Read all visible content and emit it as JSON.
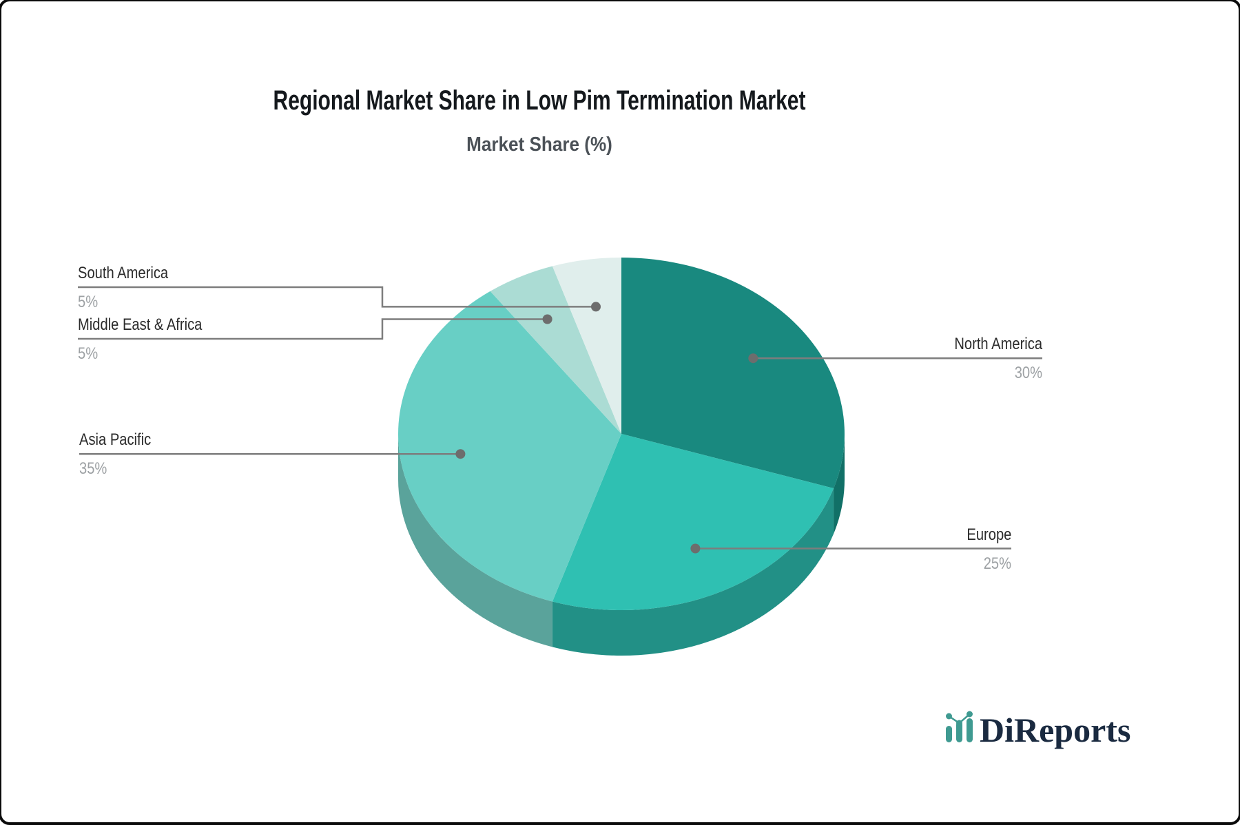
{
  "title": "Regional Market Share in Low Pim Termination Market",
  "subtitle": "Market Share (%)",
  "chart_data": {
    "type": "pie",
    "title": "Regional Market Share in Low Pim Termination Market",
    "subtitle": "Market Share (%)",
    "unit": "%",
    "style": "3d-extruded-pie",
    "direction": "clockwise",
    "start_angle_deg": 0,
    "legend": "none, callout labels with leader lines",
    "series": [
      {
        "name": "North America",
        "value": 30,
        "label": "30%",
        "color": "#19897f",
        "side_color": "#117067"
      },
      {
        "name": "Europe",
        "value": 25,
        "label": "25%",
        "color": "#2fc0b2",
        "side_color": "#229086"
      },
      {
        "name": "Asia Pacific",
        "value": 35,
        "label": "35%",
        "color": "#68cfc5",
        "side_color": "#5aa39b"
      },
      {
        "name": "Middle East & Africa",
        "value": 5,
        "label": "5%",
        "color": "#abdcd4",
        "side_color": "#8fbeb8"
      },
      {
        "name": "South America",
        "value": 5,
        "label": "5%",
        "color": "#e0eeec",
        "side_color": "#bdd4d0"
      }
    ]
  },
  "colors": {
    "leader_line": "#7d7d7d",
    "leader_dot": "#6d6d6d",
    "label_name": "#2b2b2b",
    "label_value": "#9da1a4",
    "title": "#15191d",
    "subtitle": "#4b5157",
    "logo_teal": "#3f9a91",
    "logo_navy": "#1a2a40"
  },
  "logo": {
    "text": "DiReports",
    "icon": "bar-chart-with-trend-dots"
  }
}
